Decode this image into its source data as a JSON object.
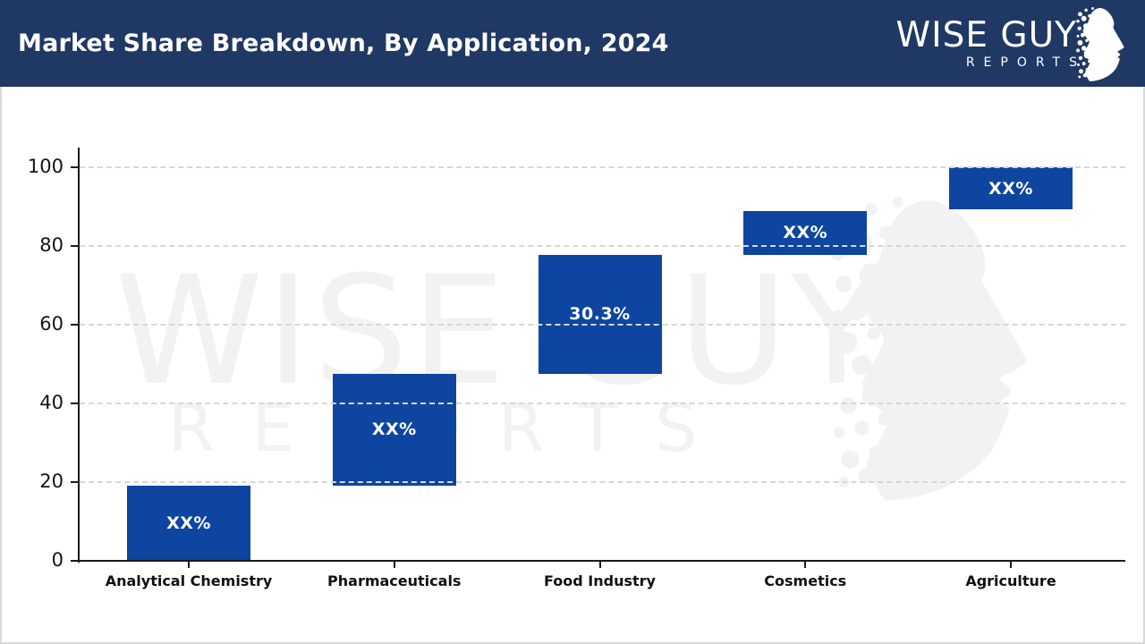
{
  "header": {
    "title": "Market Share Breakdown, By Application, 2024",
    "bg_color": "#1f3864",
    "logo": {
      "wordmark": "WISE GUY",
      "subtext": "REPORTS"
    }
  },
  "watermark": {
    "wordmark": "WISE GUY",
    "subtext": "REPORTS"
  },
  "chart_data": {
    "type": "bar",
    "subtype": "waterfall",
    "title": "Market Share Breakdown, By Application, 2024",
    "categories": [
      "Analytical Chemistry",
      "Pharmaceuticals",
      "Food Industry",
      "Cosmetics",
      "Agriculture"
    ],
    "series": [
      {
        "name": "Market share (%)",
        "segments": [
          {
            "category": "Analytical Chemistry",
            "start": 0,
            "end": 19.1,
            "label": "XX%"
          },
          {
            "category": "Pharmaceuticals",
            "start": 19.1,
            "end": 47.5,
            "label": "XX%"
          },
          {
            "category": "Food Industry",
            "start": 47.5,
            "end": 77.8,
            "label": "30.3%"
          },
          {
            "category": "Cosmetics",
            "start": 77.7,
            "end": 88.9,
            "label": "XX%"
          },
          {
            "category": "Agriculture",
            "start": 89.3,
            "end": 100,
            "label": "XX%"
          }
        ]
      }
    ],
    "xlabel": "",
    "ylabel": "",
    "ylim": [
      0,
      105
    ],
    "yticks": [
      0,
      20,
      40,
      60,
      80,
      100
    ],
    "grid": "horizontal-dashed",
    "legend": "none",
    "bar_color": "#0d45a0",
    "bar_label_color": "#ffffff",
    "gridline_color": "#d7d7d7",
    "axis_color": "#1a1a1a"
  }
}
